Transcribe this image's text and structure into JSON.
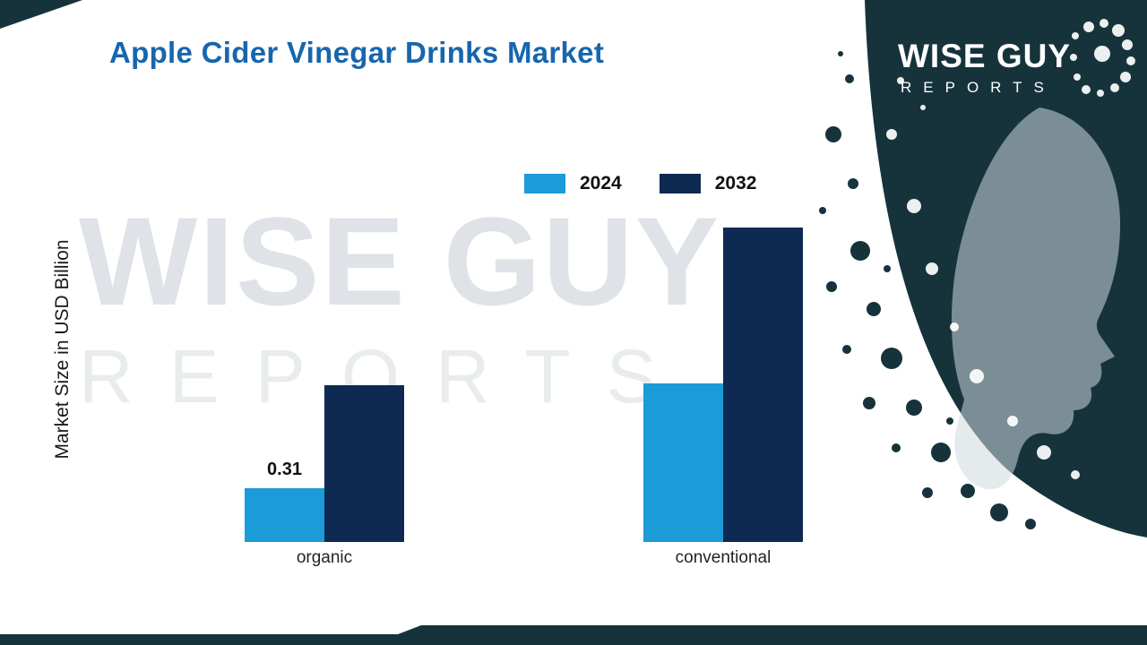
{
  "title": "Apple Cider Vinegar Drinks Market",
  "watermark": {
    "line1": "WISE GUY",
    "line2": "REPORTS"
  },
  "logo": {
    "line1": "WISE GUY",
    "line2": "REPORTS"
  },
  "colors": {
    "title": "#1766ae",
    "series_2024": "#1b9bd8",
    "series_2032": "#0e2a52",
    "decoration": "#16333c",
    "watermark": "#dfe3e8",
    "watermark_light": "#e9eced",
    "face_silhouette": "#cfd8de",
    "text": "#1a1a1a"
  },
  "chart_data": {
    "type": "bar",
    "title": "Apple Cider Vinegar Drinks Market",
    "categories": [
      "organic",
      "conventional"
    ],
    "series": [
      {
        "name": "2024",
        "color": "#1b9bd8",
        "values": [
          0.31,
          0.91
        ]
      },
      {
        "name": "2032",
        "color": "#0e2a52",
        "values": [
          0.9,
          1.81
        ]
      }
    ],
    "xlabel": "",
    "ylabel": "Market Size in USD Billion",
    "ylim": [
      0,
      2
    ],
    "grid": false,
    "legend_position": "top",
    "visible_labels": [
      {
        "category_index": 0,
        "series_index": 0,
        "text": "0.31"
      }
    ]
  }
}
